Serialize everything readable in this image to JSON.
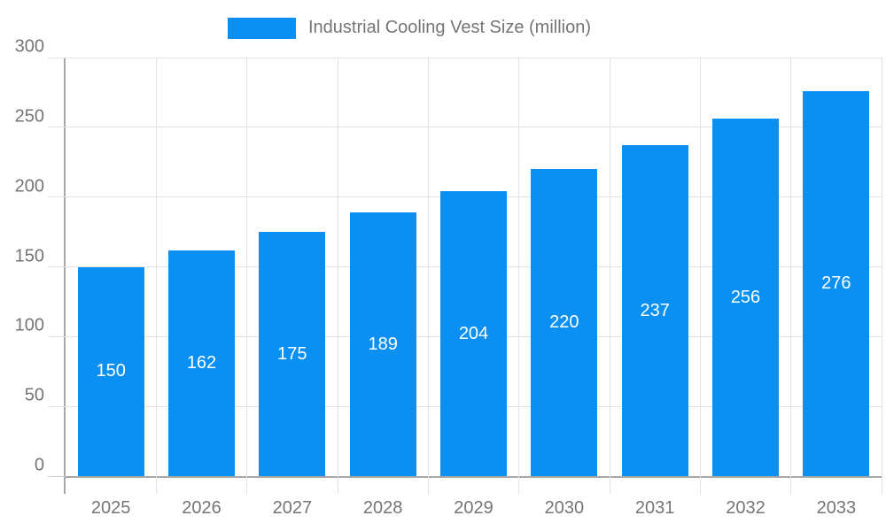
{
  "legend": {
    "label": "Industrial Cooling Vest Size (million)"
  },
  "colors": {
    "bar": "#0990f2",
    "grid": "#e2e2e2",
    "axis": "#a8a8a8",
    "tick": "#cfcfcf",
    "axis_text": "#757575",
    "value_label_text": "#ffffff",
    "background": "#ffffff"
  },
  "chart_data": {
    "type": "bar",
    "title": "Industrial Cooling Vest Size (million)",
    "categories": [
      "2025",
      "2026",
      "2027",
      "2028",
      "2029",
      "2030",
      "2031",
      "2032",
      "2033"
    ],
    "values": [
      150,
      162,
      175,
      189,
      204,
      220,
      237,
      256,
      276
    ],
    "xlabel": "",
    "ylabel": "",
    "ylim": [
      0,
      300
    ],
    "yticks": [
      0,
      50,
      100,
      150,
      200,
      250,
      300
    ],
    "grid": true,
    "legend_position": "top-center",
    "value_labels": "inside-middle"
  }
}
